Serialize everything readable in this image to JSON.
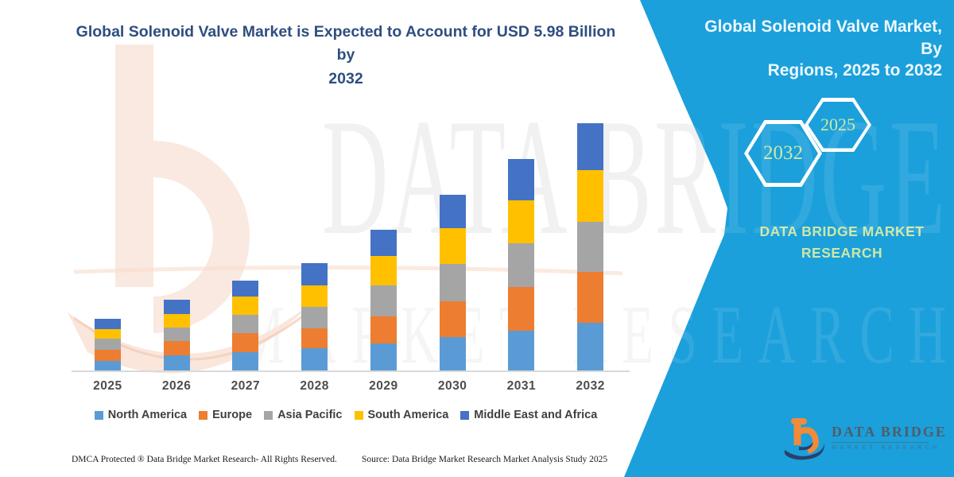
{
  "title": {
    "line1": "Global Solenoid Valve Market is Expected to Account for USD 5.98 Billion by",
    "line2": "2032"
  },
  "watermark": {
    "line1": "DATA BRIDGE",
    "line2": "MARKET RESEARCH"
  },
  "panel": {
    "title_line1": "Global Solenoid Valve Market, By",
    "title_line2": "Regions, 2025 to 2032",
    "hex_large_label": "2032",
    "hex_small_label": "2025",
    "brand_line1": "DATA BRIDGE MARKET",
    "brand_line2": "RESEARCH",
    "background_color": "#1BA0DB",
    "accent_text_color": "#CDE7A6"
  },
  "logo": {
    "name": "DATA BRIDGE",
    "subtitle": "MARKET RESEARCH"
  },
  "footer": {
    "left": "DMCA Protected ® Data Bridge Market Research-  All Rights Reserved.",
    "right": "Source: Data Bridge Market Research  Market Analysis Study 2025"
  },
  "chart_data": {
    "type": "bar",
    "stacked": true,
    "unit": "USD Billion",
    "title": "Global Solenoid Valve Market is Expected to Account for USD 5.98 Billion by 2032",
    "xlabel": "",
    "ylabel": "",
    "y_axis_visible": false,
    "gridlines": false,
    "legend_position": "bottom",
    "ylim": [
      0,
      6.2
    ],
    "categories": [
      "2025",
      "2026",
      "2027",
      "2028",
      "2029",
      "2030",
      "2031",
      "2032"
    ],
    "series": [
      {
        "name": "North America",
        "color": "#5B9BD5",
        "values": [
          0.24,
          0.37,
          0.44,
          0.54,
          0.65,
          0.8,
          0.96,
          1.15
        ]
      },
      {
        "name": "Europe",
        "color": "#ED7D31",
        "values": [
          0.26,
          0.34,
          0.46,
          0.48,
          0.66,
          0.87,
          1.06,
          1.23
        ]
      },
      {
        "name": "Asia Pacific",
        "color": "#A5A5A5",
        "values": [
          0.27,
          0.33,
          0.44,
          0.51,
          0.74,
          0.9,
          1.06,
          1.22
        ]
      },
      {
        "name": "South America",
        "color": "#FFC000",
        "values": [
          0.23,
          0.32,
          0.44,
          0.53,
          0.72,
          0.87,
          1.03,
          1.24
        ]
      },
      {
        "name": "Middle East and Africa",
        "color": "#4472C4",
        "values": [
          0.26,
          0.35,
          0.39,
          0.54,
          0.63,
          0.82,
          1.01,
          1.14
        ]
      }
    ],
    "totals": [
      1.26,
      1.71,
      2.17,
      2.6,
      3.4,
      4.26,
      5.12,
      5.98
    ]
  }
}
